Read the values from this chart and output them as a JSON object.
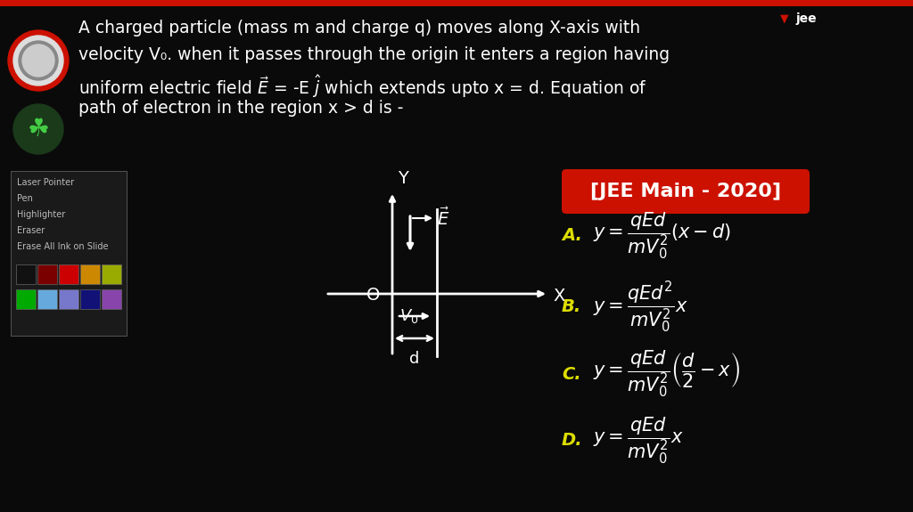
{
  "background_color": "#050505",
  "title_lines": [
    "A charged particle (mass m and charge q) moves along X-axis with",
    "velocity V₀. when it passes through the origin it enters a region having",
    "uniform electric field $\\vec{E}$ = -E $\\hat{j}$ which extends upto x = d. Equation of",
    "path of electron in the region x > d is -"
  ],
  "title_color": "#ffffff",
  "title_fontsize": 13.5,
  "jee_badge_text": "jee",
  "jee_main_badge_text": "[JEE Main - 2020]",
  "jee_main_badge_color": "#cc1100",
  "options": [
    {
      "label": "A.",
      "formula": "$y = \\dfrac{qEd}{mV_0^2}(x-d)$"
    },
    {
      "label": "B.",
      "formula": "$y = \\dfrac{qEd^2}{mV_0^2}x$"
    },
    {
      "label": "C.",
      "formula": "$y = \\dfrac{qEd}{mV_0^2}\\left(\\dfrac{d}{2}-x\\right)$"
    },
    {
      "label": "D.",
      "formula": "$y = \\dfrac{qEd}{mV_0^2}x$"
    }
  ],
  "option_label_color": "#dddd00",
  "option_formula_color": "#ffffff",
  "option_fontsize": 15,
  "toolbar_items": [
    "Laser Pointer",
    "Pen",
    "Highlighter",
    "Eraser",
    "Erase All Ink on Slide"
  ],
  "colors_row1": [
    "#111111",
    "#7a0000",
    "#cc0000",
    "#cc8800",
    "#99aa00"
  ],
  "colors_row2": [
    "#00aa00",
    "#66aadd",
    "#7777cc",
    "#111177",
    "#8844aa"
  ],
  "diagram": {
    "origin_label": "O",
    "x_label": "X",
    "y_label": "Y",
    "v0_label": "$V_0$",
    "d_label": "d",
    "E_label": "$\\vec{E}$"
  },
  "top_bar_color": "#cc1100",
  "circle_outer_color": "#cc1100",
  "circle_inner_color": "#ffffff"
}
